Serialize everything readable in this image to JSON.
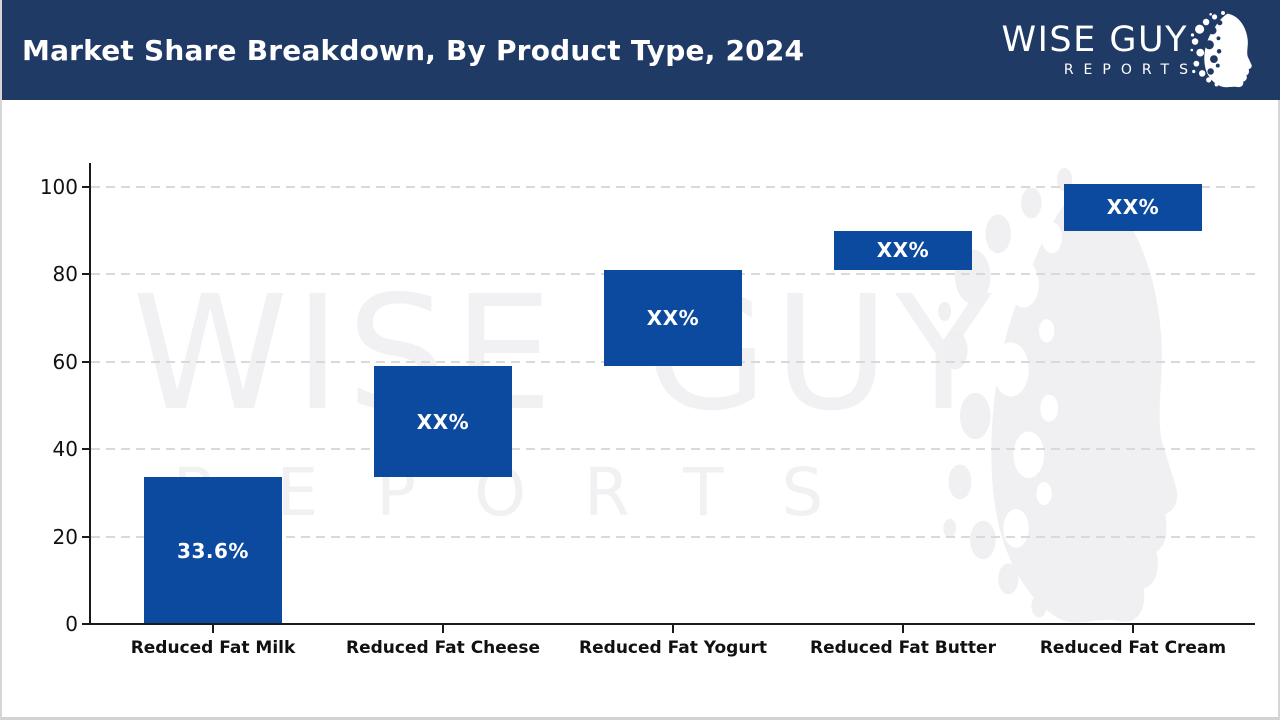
{
  "header": {
    "title": "Market Share Breakdown, By Product Type, 2024",
    "background_color": "#203A66",
    "logo": {
      "line1": "WISE GUY",
      "line2": "REPORTS",
      "icon": "face-dots-icon"
    }
  },
  "watermark": {
    "line1": "WISE GUY",
    "line2": "REPORTS",
    "icon": "face-dots-watermark"
  },
  "chart_data": {
    "type": "bar",
    "subtype": "floating-segment-waterfall",
    "title": "Market Share Breakdown, By Product Type, 2024",
    "categories": [
      "Reduced Fat Milk",
      "Reduced Fat Cheese",
      "Reduced Fat Yogurt",
      "Reduced Fat Butter",
      "Reduced Fat Cream"
    ],
    "series": [
      {
        "name": "Market Share (%)",
        "segments": [
          {
            "category": "Reduced Fat Milk",
            "start": 0,
            "end": 33.6,
            "label": "33.6%"
          },
          {
            "category": "Reduced Fat Cheese",
            "start": 33.6,
            "end": 59.0,
            "label": "XX%"
          },
          {
            "category": "Reduced Fat Yogurt",
            "start": 59.0,
            "end": 81.0,
            "label": "XX%"
          },
          {
            "category": "Reduced Fat Butter",
            "start": 81.0,
            "end": 90.0,
            "label": "XX%"
          },
          {
            "category": "Reduced Fat Cream",
            "start": 90.0,
            "end": 100.8,
            "label": "XX%"
          }
        ]
      }
    ],
    "xlabel": "",
    "ylabel": "",
    "ylim": [
      0,
      105.5
    ],
    "yticks": [
      0,
      20,
      40,
      60,
      80,
      100
    ],
    "grid": "horizontal-dashed",
    "legend": "none",
    "bar_color": "#0B4A9E",
    "bar_label_color": "#FFFFFF",
    "axis_color": "#1a1a1a",
    "grid_color": "#d9d9d9"
  }
}
